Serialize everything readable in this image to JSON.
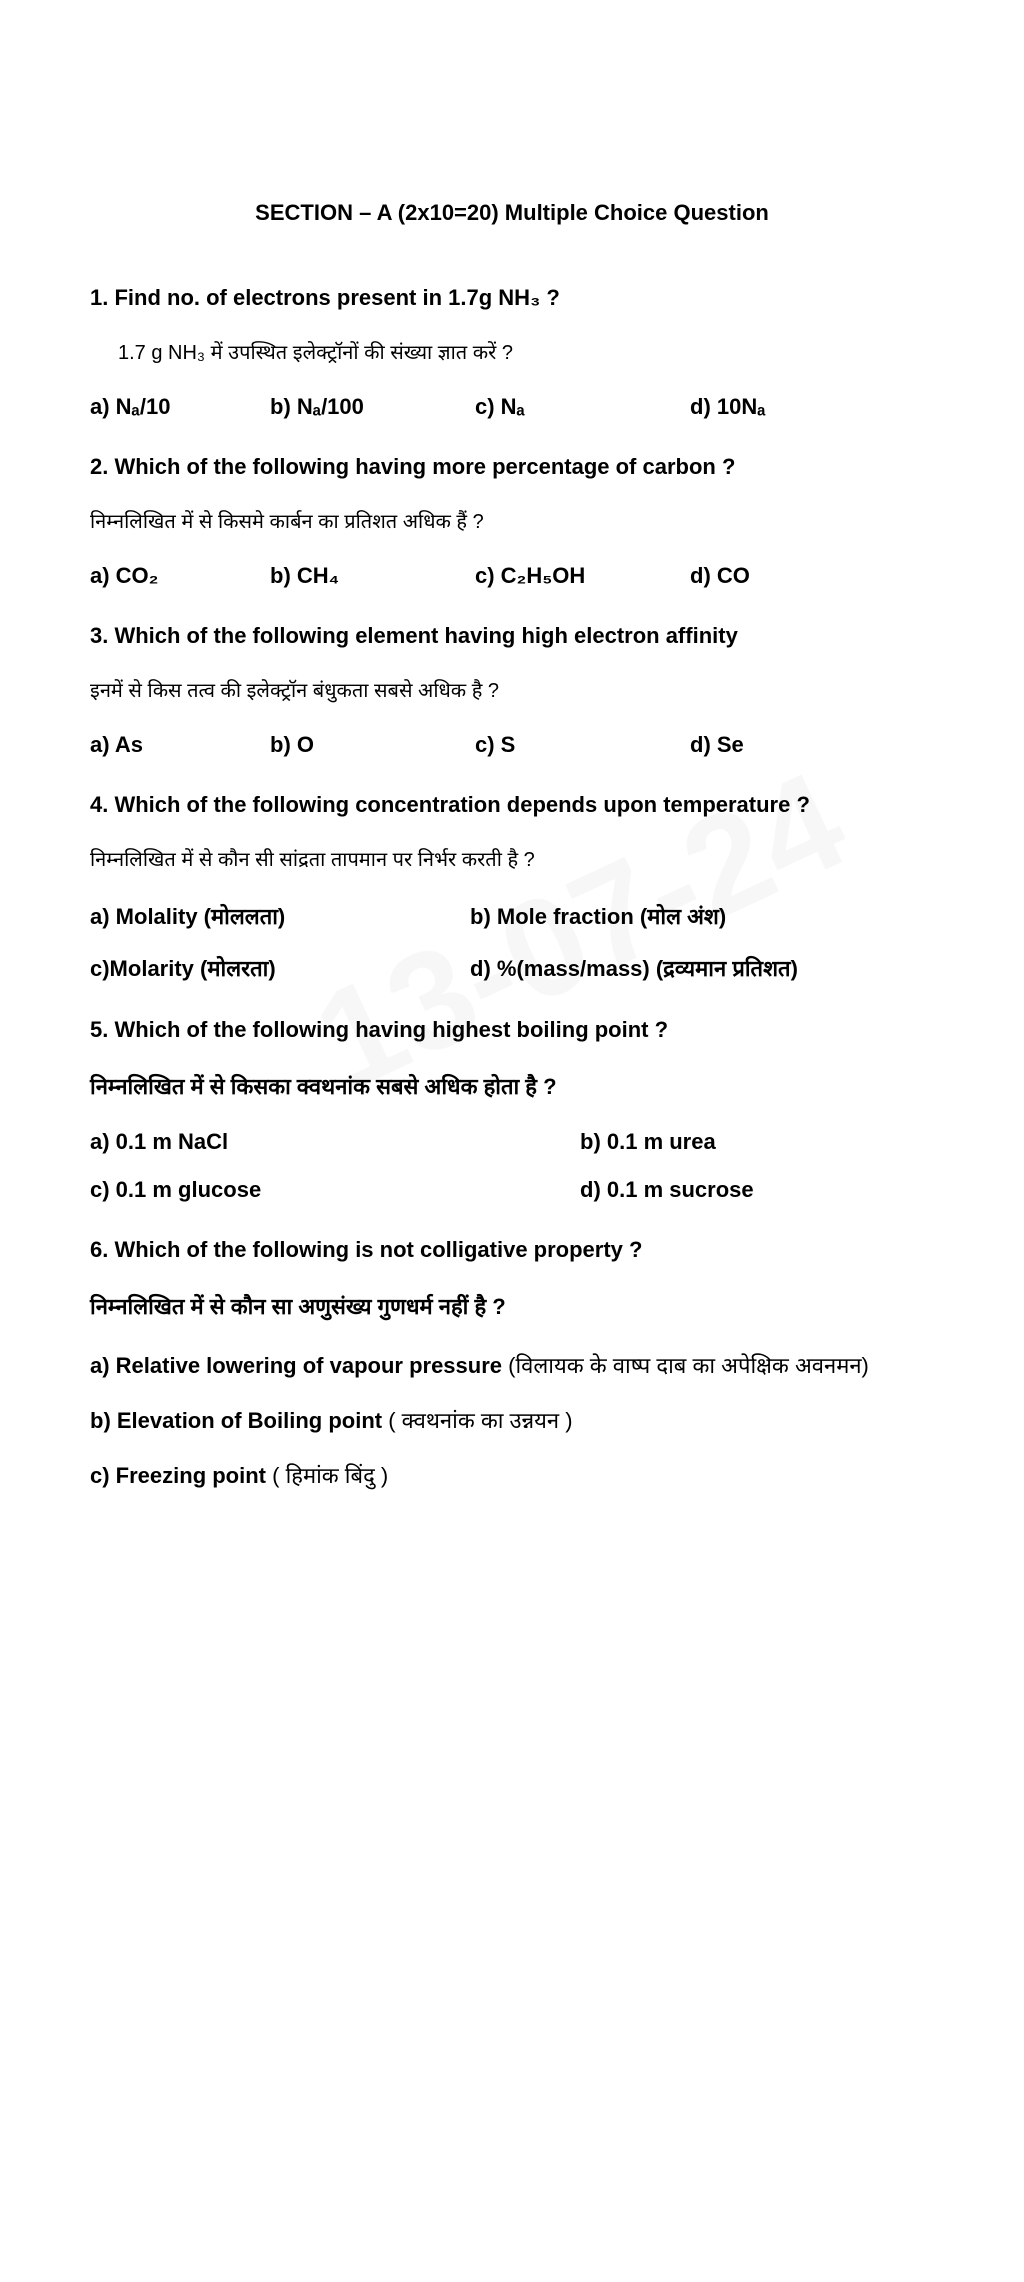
{
  "colors": {
    "background": "#ffffff",
    "text": "#000000",
    "watermark": "rgba(200,200,200,0.15)"
  },
  "typography": {
    "base_fontsize": 22,
    "hindi_fontsize": 20,
    "font_family": "Arial, sans-serif"
  },
  "watermark_text": "13-07-24",
  "section_header": "SECTION – A (2x10=20) Multiple Choice Question",
  "questions": [
    {
      "num": "1",
      "en": "1. Find no. of electrons present in 1.7g NH₃ ?",
      "hi": "1.7 g NH₃ में उपस्थित इलेक्ट्रॉनों की संख्या ज्ञात करें ?",
      "options": {
        "a": "a) Nₐ/10",
        "b": "b) Nₐ/100",
        "c": "c) Nₐ",
        "d": "d) 10Nₐ"
      }
    },
    {
      "num": "2",
      "en": "2. Which of the following having more percentage of carbon ?",
      "hi": "निम्नलिखित में से किसमे कार्बन का प्रतिशत अधिक हैं ?",
      "options": {
        "a": "a) CO₂",
        "b": "b) CH₄",
        "c": "c) C₂H₅OH",
        "d": "d) CO"
      }
    },
    {
      "num": "3",
      "en": "3. Which of the following element having high electron affinity",
      "hi": "इनमें से किस तत्व की इलेक्ट्रॉन बंधुकता सबसे अधिक है ?",
      "options": {
        "a": "a) As",
        "b": "b) O",
        "c": "c) S",
        "d": "d) Se"
      }
    },
    {
      "num": "4",
      "en": "4. Which of the following concentration depends upon temperature ?",
      "hi": "निम्नलिखित में से कौन सी सांद्रता तापमान पर निर्भर करती है ?",
      "options": {
        "a": "a) Molality (मोललता)",
        "b": "b) Mole fraction (मोल अंश)",
        "c": "c)Molarity (मोलरता)",
        "d": "d) %(mass/mass) (द्रव्यमान  प्रतिशत)"
      }
    },
    {
      "num": "5",
      "en": "5. Which of the following having highest boiling point ?",
      "hi_bold": "निम्नलिखित में से किसका क्वथनांक सबसे अधिक होता है ?",
      "options": {
        "a": "a) 0.1 m NaCl",
        "b": "b) 0.1 m urea",
        "c": "c) 0.1 m glucose",
        "d": "d) 0.1 m sucrose"
      }
    },
    {
      "num": "6",
      "en": "6. Which of the following is not colligative property ?",
      "hi_bold": "निम्नलिखित में से कौन सा अणुसंख्य गुणधर्म नहीं है ?",
      "options": {
        "a_pre": "a) Relative lowering of vapour pressure ",
        "a_hi": "(विलायक के वाष्प दाब का अपेक्षिक अवनमन)",
        "b_pre": "b) Elevation of Boiling point ",
        "b_hi": "( क्वथनांक का उन्नयन )",
        "c_pre": "c) Freezing point ",
        "c_hi": "( हिमांक बिंदु )"
      }
    }
  ]
}
